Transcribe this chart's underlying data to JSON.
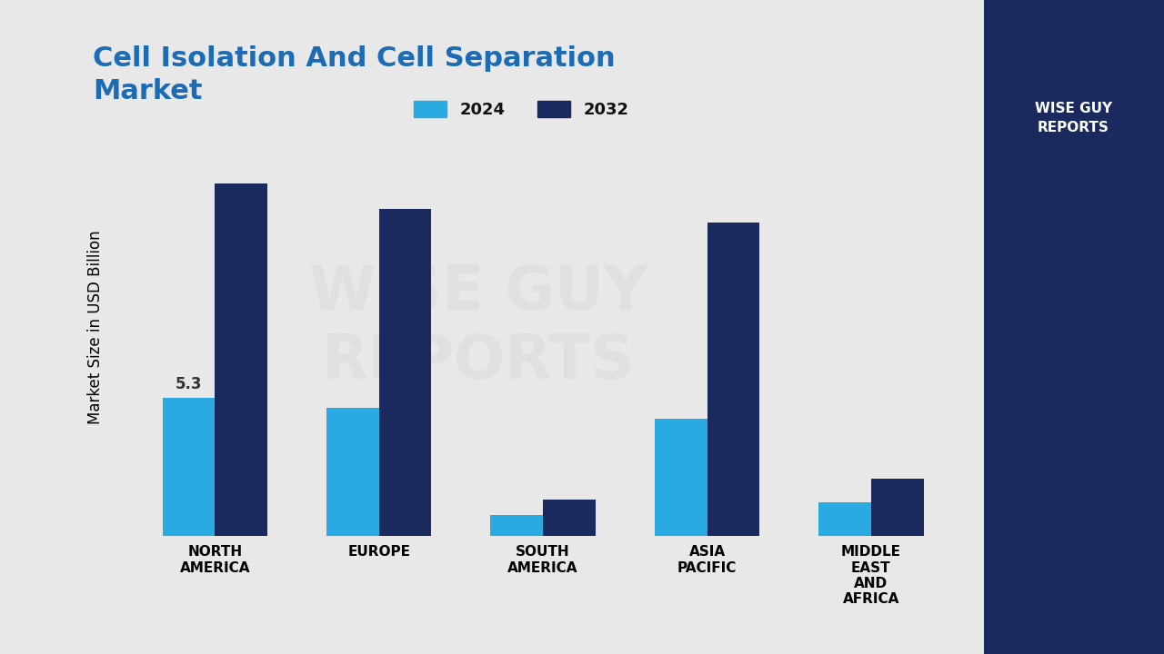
{
  "title": "Cell Isolation And Cell Separation\nMarket",
  "ylabel": "Market Size in USD Billion",
  "categories": [
    "NORTH\nAMERICA",
    "EUROPE",
    "SOUTH\nAMERICA",
    "ASIA\nPACIFIC",
    "MIDDLE\nEAST\nAND\nAFRICA"
  ],
  "values_2024": [
    5.3,
    4.9,
    0.8,
    4.5,
    1.3
  ],
  "values_2032": [
    13.5,
    12.5,
    1.4,
    12.0,
    2.2
  ],
  "color_2024": "#29ABE2",
  "color_2032": "#1B2A5E",
  "annotation_label": "5.3",
  "annotation_category_idx": 0,
  "background_color": "#E8E8E8",
  "title_color": "#1B6BB5",
  "ylabel_color": "#000000",
  "legend_labels": [
    "2024",
    "2032"
  ],
  "bar_width": 0.32,
  "ylim": [
    0,
    16
  ]
}
